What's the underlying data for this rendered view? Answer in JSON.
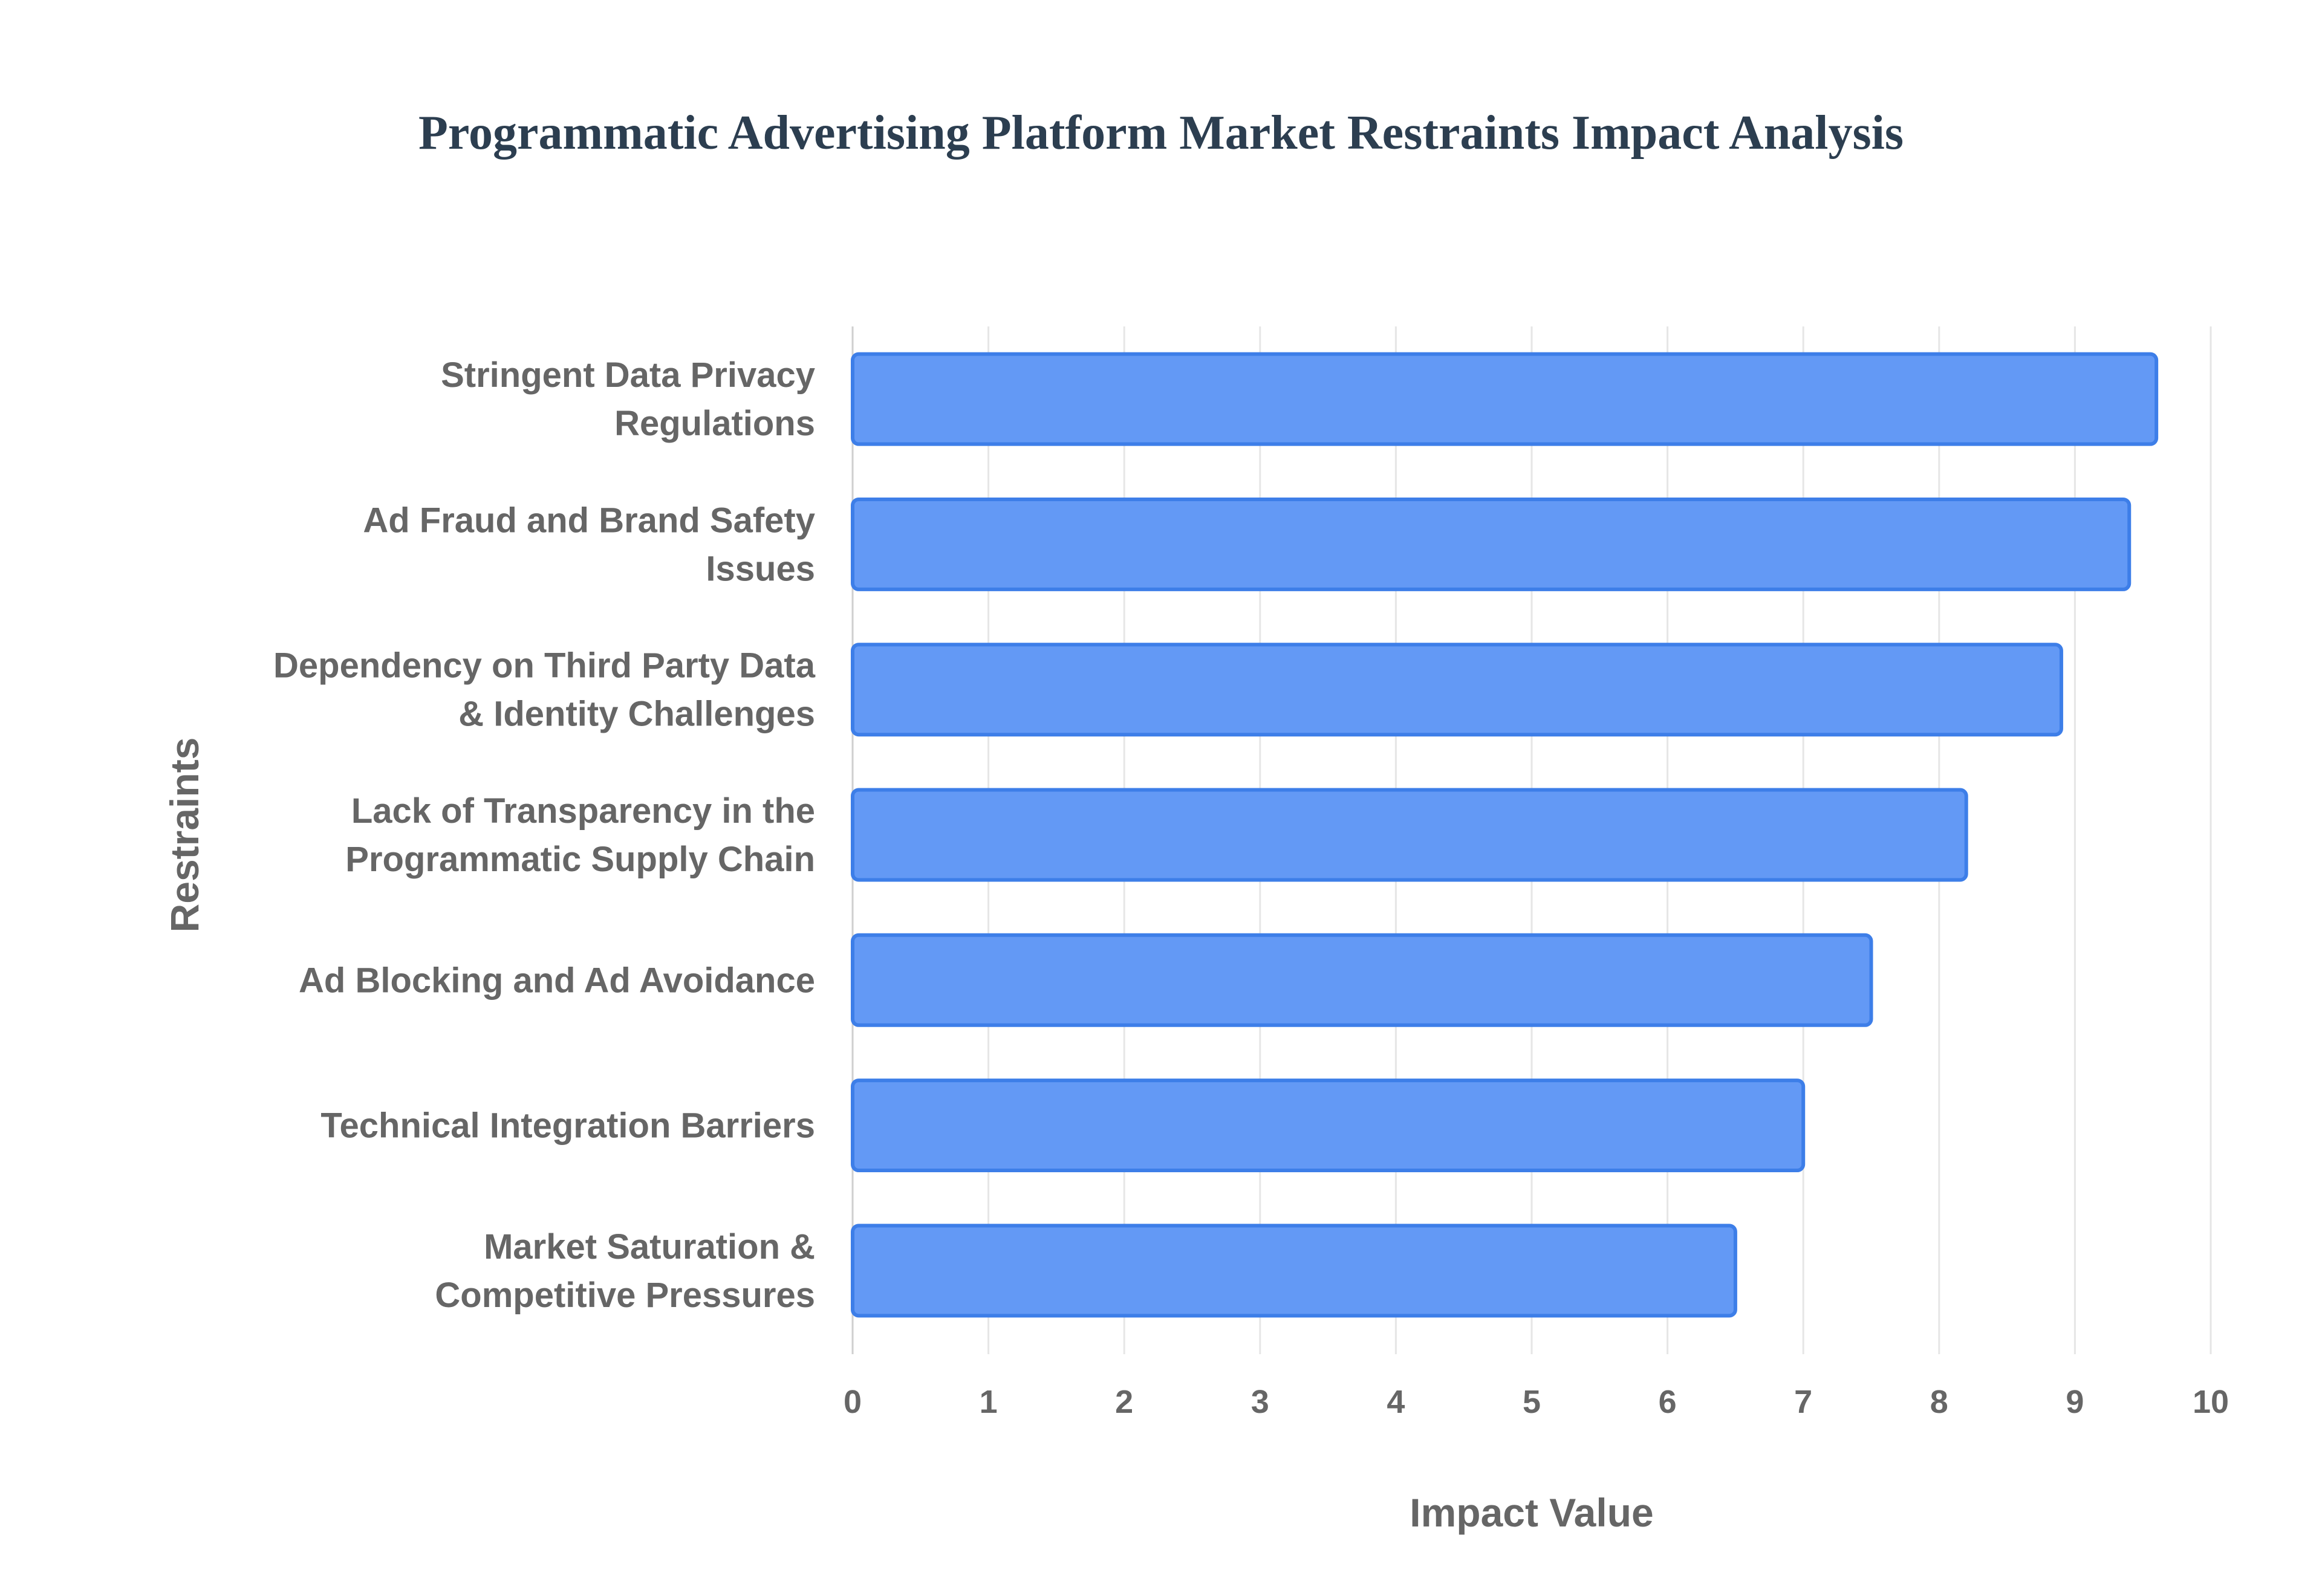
{
  "chart_data": {
    "type": "bar",
    "orientation": "horizontal",
    "title": "Programmatic Advertising Platform Market Restraints Impact Analysis",
    "xlabel": "Impact Value",
    "ylabel": "Restraints",
    "xlim": [
      0,
      10
    ],
    "x_ticks": [
      "0",
      "1",
      "2",
      "3",
      "4",
      "5",
      "6",
      "7",
      "8",
      "9",
      "10"
    ],
    "grid": "vertical",
    "legend": "none",
    "categories": [
      [
        "Stringent Data Privacy",
        "Regulations"
      ],
      [
        "Ad Fraud and Brand Safety",
        "Issues"
      ],
      [
        "Dependency on Third Party Data",
        "& Identity Challenges"
      ],
      [
        "Lack of Transparency in the",
        "Programmatic Supply Chain"
      ],
      [
        "Ad Blocking and Ad Avoidance"
      ],
      [
        "Technical Integration Barriers"
      ],
      [
        "Market Saturation &",
        "Competitive Pressures"
      ]
    ],
    "values": [
      9.6,
      9.4,
      8.9,
      8.2,
      7.5,
      7.0,
      6.5
    ],
    "colors": {
      "bar_fill": "#6399f5",
      "bar_stroke": "#3d7ee8",
      "grid": "#e6e6e6",
      "text": "#666666"
    }
  }
}
